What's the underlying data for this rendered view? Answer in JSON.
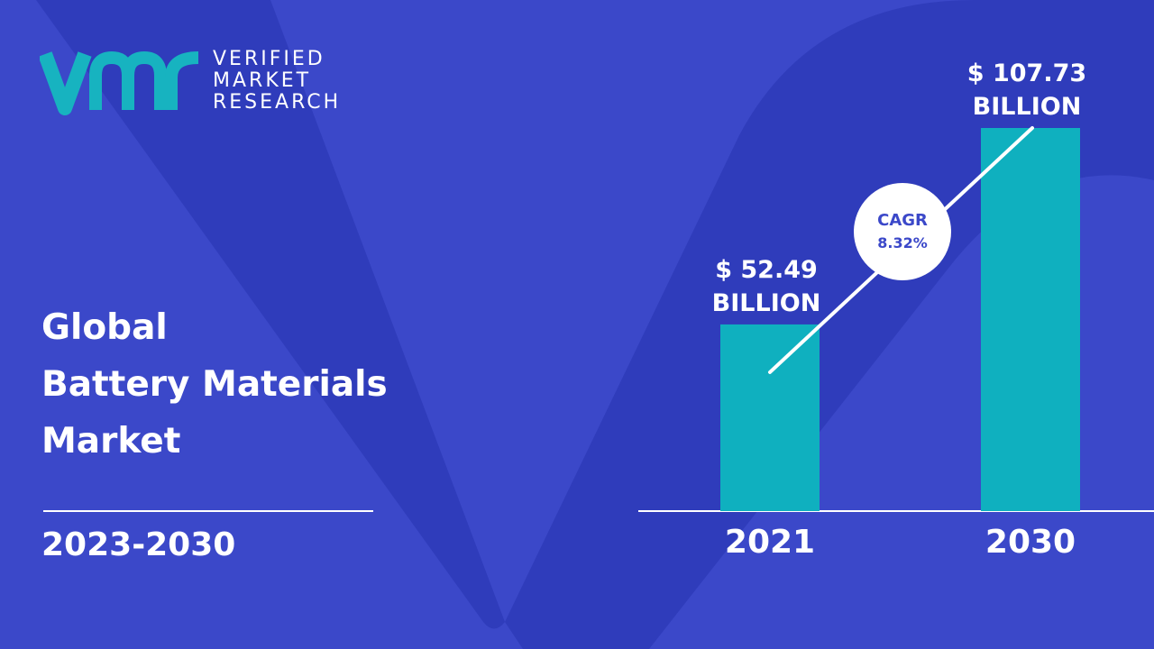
{
  "brand": {
    "line1": "VERIFIED",
    "line2": "MARKET",
    "line3": "RESEARCH",
    "accent_color": "#17b3c0"
  },
  "title": {
    "line1": "Global",
    "line2": "Battery Materials",
    "line3": "Market"
  },
  "period": "2023-2030",
  "colors": {
    "background": "#3b48c9",
    "background_shape": "#2e3bb8",
    "bar": "#0fb0bf",
    "text": "#ffffff",
    "cagr_text": "#3b48c9"
  },
  "cagr": {
    "label": "CAGR",
    "value": "8.32%"
  },
  "chart_data": {
    "type": "bar",
    "categories": [
      "2021",
      "2030"
    ],
    "values": [
      52.49,
      107.73
    ],
    "value_labels": [
      [
        "$ 52.49",
        "BILLION"
      ],
      [
        "$ 107.73",
        "BILLION"
      ]
    ],
    "unit": "USD billion",
    "title": "",
    "xlabel": "",
    "ylabel": "",
    "grid": false
  }
}
